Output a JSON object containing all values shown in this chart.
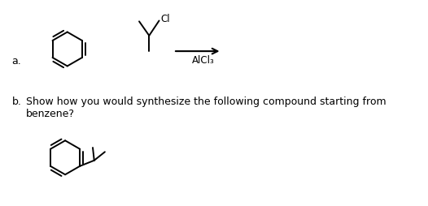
{
  "background_color": "#ffffff",
  "label_a": "a.",
  "label_b": "b.",
  "label_b_text": "Show how you would synthesize the following compound starting from\nbenzene?",
  "alcl3_text": "AlCl₃",
  "cl_text": "Cl",
  "text_color": "#000000",
  "arrow_color": "#000000",
  "structure_color": "#000000",
  "fig_width": 5.26,
  "fig_height": 2.55,
  "dpi": 100
}
